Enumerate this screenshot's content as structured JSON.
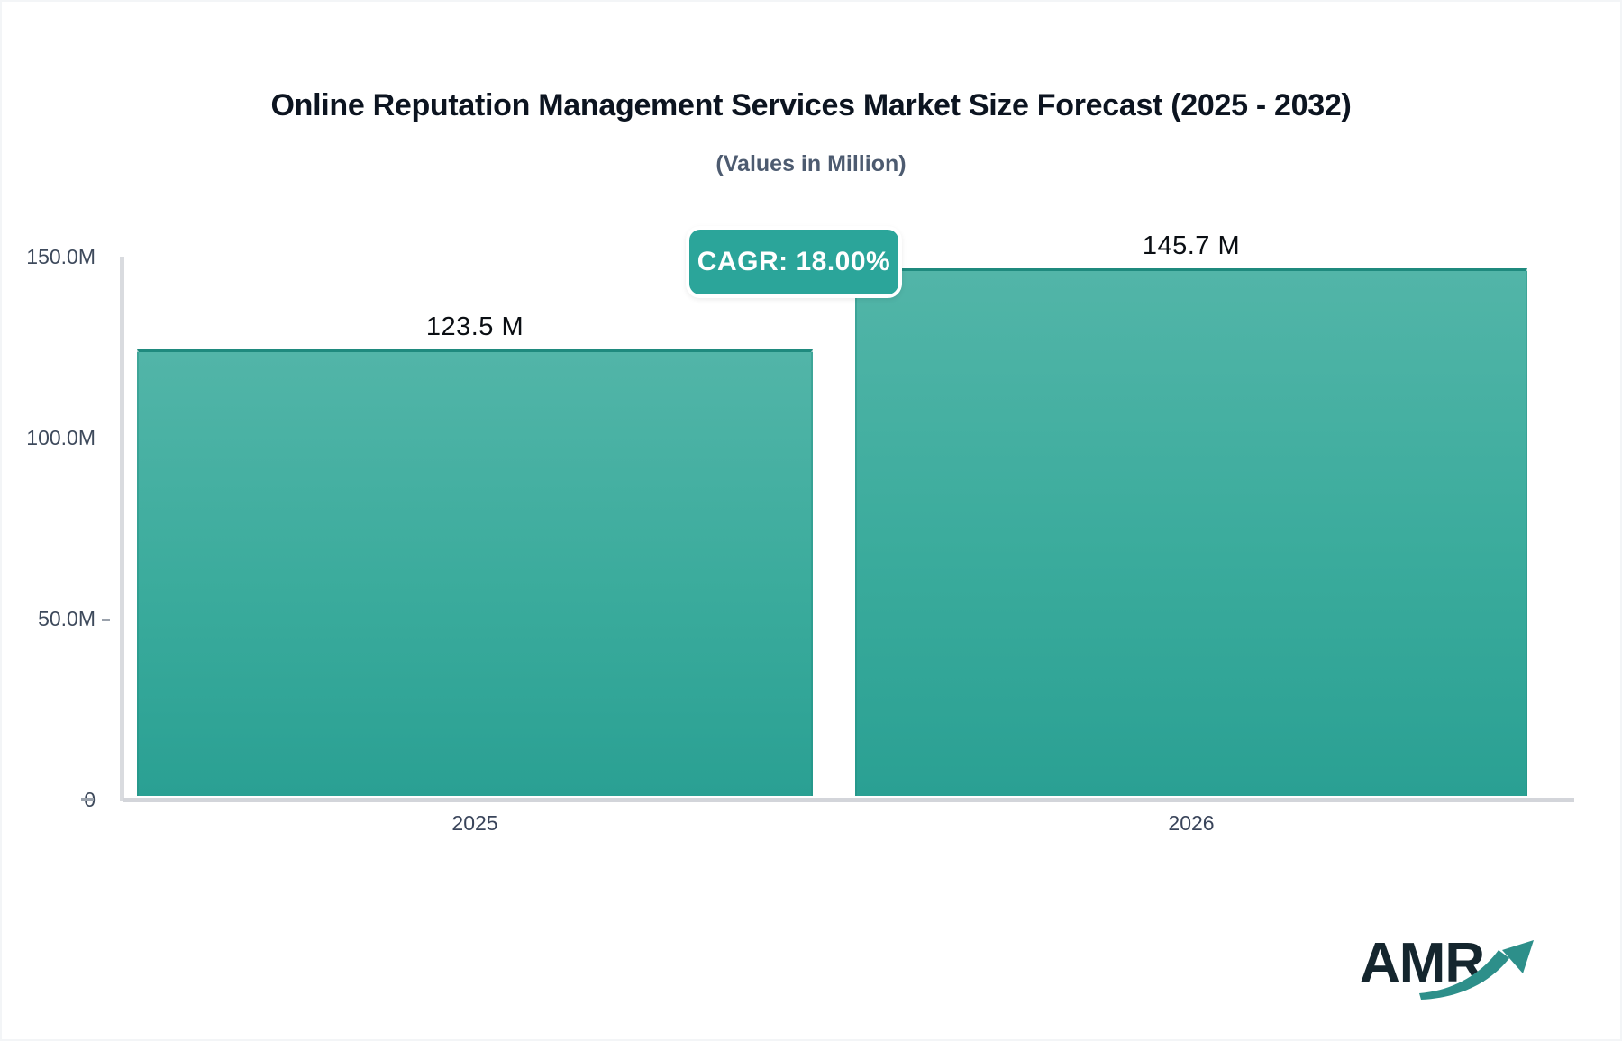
{
  "header": {
    "title": "Online Reputation Management Services Market Size Forecast (2025 - 2032)",
    "subtitle": "(Values in Million)"
  },
  "cagr_badge": {
    "label": "CAGR: 18.00%"
  },
  "chart_data": {
    "type": "bar",
    "title": "Online Reputation Management Services Market Size Forecast (2025 - 2032)",
    "subtitle": "(Values in Million)",
    "categories": [
      "2025",
      "2026"
    ],
    "values": [
      123.5,
      145.7
    ],
    "value_labels": [
      "123.5 M",
      "145.7 M"
    ],
    "ylim": [
      0,
      150
    ],
    "yticks": [
      {
        "label": "150.0M",
        "value": 150
      },
      {
        "label": "100.0M",
        "value": 100
      },
      {
        "label": "50.0M",
        "value": 50
      },
      {
        "label": "0",
        "value": 0
      }
    ],
    "cagr_percent": "18.00%",
    "grid": false,
    "legend": false,
    "bar_color_top": "#52b5a8",
    "bar_color_bottom": "#2aa093",
    "accent_color": "#2ba59a"
  },
  "logo": {
    "text": "AMR",
    "arrow_color": "#2d8f8a"
  }
}
